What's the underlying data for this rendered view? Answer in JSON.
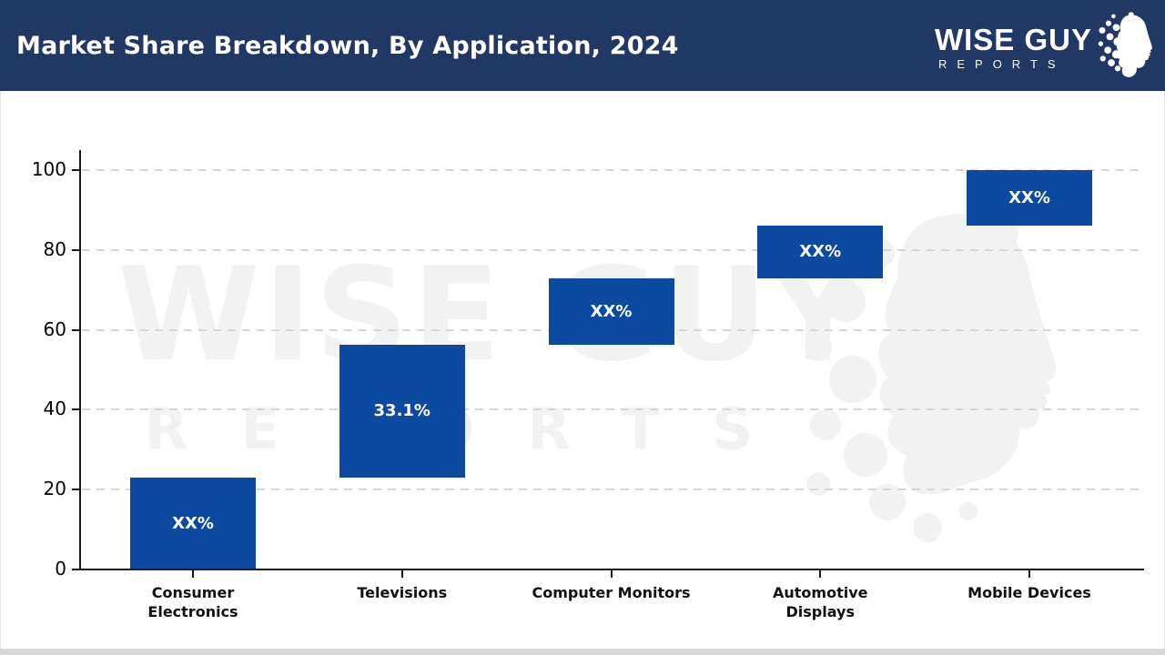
{
  "header": {
    "title": "Market Share Breakdown, By Application, 2024",
    "logo": {
      "wordmark": "WISE GUY",
      "subtext": "REPORTS"
    }
  },
  "watermark": {
    "wordmark": "WISE GUY",
    "subtext": "REPORTS"
  },
  "chart_data": {
    "type": "bar",
    "variant": "waterfall",
    "title": "Market Share Breakdown, By Application, 2024",
    "categories": [
      "Consumer\nElectronics",
      "Televisions",
      "Computer Monitors",
      "Automotive\nDisplays",
      "Mobile Devices"
    ],
    "bars": [
      {
        "category": "Consumer Electronics",
        "start": 0,
        "end": 23.1,
        "label": "XX%"
      },
      {
        "category": "Televisions",
        "start": 23.1,
        "end": 56.2,
        "label": "33.1%",
        "value": 33.1
      },
      {
        "category": "Computer Monitors",
        "start": 56.2,
        "end": 72.9,
        "label": "XX%"
      },
      {
        "category": "Automotive Displays",
        "start": 72.9,
        "end": 86.1,
        "label": "XX%"
      },
      {
        "category": "Mobile Devices",
        "start": 86.1,
        "end": 100.0,
        "label": "XX%"
      }
    ],
    "y_ticks": [
      0,
      20,
      40,
      60,
      80,
      100
    ],
    "ylim": [
      0,
      105
    ],
    "xlabel": "",
    "ylabel": "",
    "grid": {
      "axis": "y",
      "style": "dashed"
    },
    "legend": false,
    "colors": {
      "bar": "#0b4aa0",
      "value_label": "#ffffff"
    }
  },
  "colors": {
    "header_bg": "#1f3864",
    "header_text": "#ffffff",
    "axis": "#1a1a1a",
    "gridline": "#d8d8d8",
    "tick_label": "#000000",
    "category_label": "#111111",
    "watermark": "#f2f2f2",
    "footer_bar": "#d9d9d9"
  }
}
